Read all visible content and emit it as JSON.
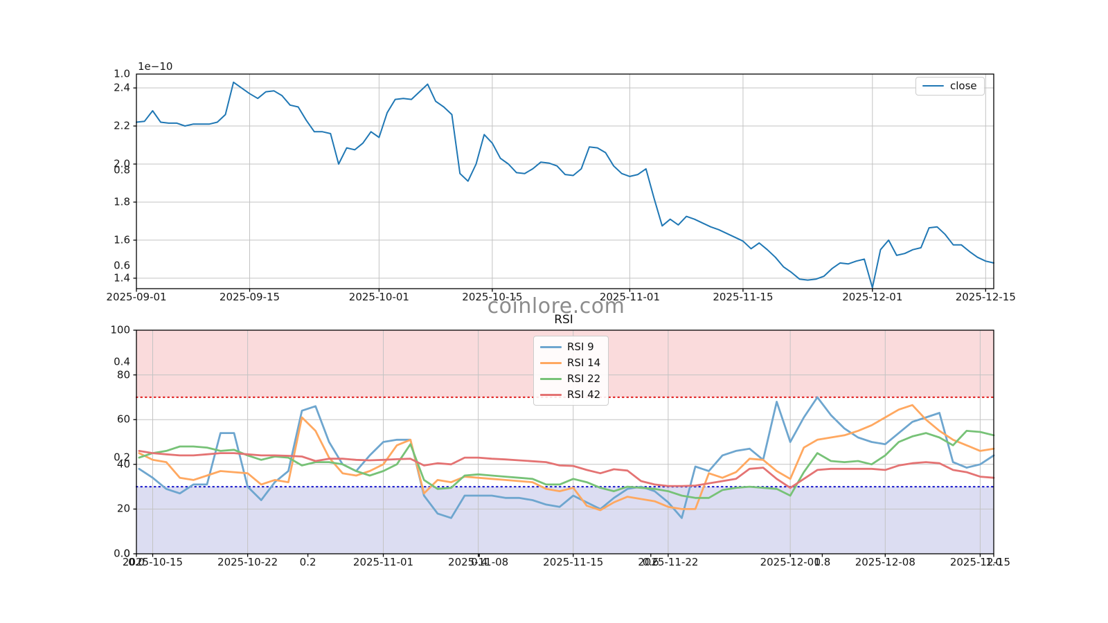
{
  "figure": {
    "watermark": "coinlore.com",
    "background": "#ffffff",
    "grid_color": "#c3c3c3",
    "spine_color": "#000000"
  },
  "hidden_axis": {
    "xticks": [
      "0.0",
      "0.2",
      "0.4",
      "0.6",
      "0.8",
      "1.0"
    ],
    "yticks": [
      "1.0",
      "0.8",
      "0.6",
      "0.4",
      "0.2",
      "0.0"
    ]
  },
  "chart_data": [
    {
      "id": "price",
      "type": "line",
      "title": "",
      "y_offset_label": "1e−10",
      "x_first": "2025-09-01",
      "x_freq": "daily",
      "xlim_days": [
        0,
        106
      ],
      "ylim": [
        1.345,
        2.473
      ],
      "grid": true,
      "legend_position": "upper right",
      "xtick_days": [
        0,
        14,
        30,
        44,
        61,
        75,
        91,
        105
      ],
      "xtick_labels": [
        "2025-09-01",
        "2025-09-15",
        "2025-10-01",
        "2025-10-15",
        "2025-11-01",
        "2025-11-15",
        "2025-12-01",
        "2025-12-15"
      ],
      "ytick_labels": [
        "1.4",
        "1.6",
        "1.8",
        "2.0",
        "2.2",
        "2.4"
      ],
      "y_scale_note": "values are x 1e-10",
      "series": [
        {
          "name": "close",
          "color": "#1f77b4",
          "width": 2,
          "values": [
            2.22,
            2.225,
            2.28,
            2.22,
            2.215,
            2.215,
            2.2,
            2.21,
            2.21,
            2.21,
            2.22,
            2.26,
            2.43,
            2.4,
            2.37,
            2.345,
            2.38,
            2.385,
            2.36,
            2.31,
            2.3,
            2.23,
            2.17,
            2.17,
            2.16,
            2.0,
            2.085,
            2.075,
            2.11,
            2.17,
            2.14,
            2.27,
            2.34,
            2.345,
            2.34,
            2.38,
            2.42,
            2.33,
            2.3,
            2.26,
            1.95,
            1.91,
            2.0,
            2.155,
            2.11,
            2.03,
            2.0,
            1.955,
            1.95,
            1.975,
            2.01,
            2.005,
            1.99,
            1.945,
            1.94,
            1.975,
            2.09,
            2.085,
            2.06,
            1.99,
            1.95,
            1.935,
            1.945,
            1.975,
            1.82,
            1.675,
            1.71,
            1.68,
            1.725,
            1.71,
            1.69,
            1.67,
            1.655,
            1.635,
            1.615,
            1.595,
            1.555,
            1.585,
            1.55,
            1.51,
            1.46,
            1.43,
            1.395,
            1.39,
            1.395,
            1.41,
            1.45,
            1.48,
            1.475,
            1.49,
            1.5,
            1.35,
            1.55,
            1.6,
            1.52,
            1.53,
            1.55,
            1.56,
            1.665,
            1.67,
            1.63,
            1.575,
            1.575,
            1.54,
            1.51,
            1.49,
            1.48
          ]
        }
      ]
    },
    {
      "id": "rsi",
      "type": "line",
      "title": "RSI",
      "x_first": "2025-10-14",
      "x_freq": "daily",
      "ylim": [
        0,
        100
      ],
      "grid": true,
      "legend_position": "upper center",
      "xtick_idx": [
        1,
        8,
        18,
        25,
        32,
        39,
        48,
        55,
        62
      ],
      "xtick_labels": [
        "2025-10-15",
        "2025-10-22",
        "2025-11-01",
        "2025-11-08",
        "2025-11-15",
        "2025-11-22",
        "2025-12-01",
        "2025-12-08",
        "2025-12-15"
      ],
      "ytick_labels": [
        "0",
        "20",
        "40",
        "60",
        "80",
        "100"
      ],
      "bands": [
        {
          "from": 70,
          "to": 100,
          "color": "#fadbdc",
          "meaning": "overbought"
        },
        {
          "from": 0,
          "to": 30,
          "color": "#dcddf2",
          "meaning": "oversold"
        }
      ],
      "hlines": [
        {
          "y": 70,
          "color": "#e22a2a",
          "style": "dotted"
        },
        {
          "y": 30,
          "color": "#2323cd",
          "style": "dotted"
        }
      ],
      "series": [
        {
          "name": "RSI 9",
          "color": "#6ea6cf",
          "width": 2.8,
          "values": [
            38,
            34,
            29,
            27,
            31,
            31,
            54,
            54,
            30,
            24,
            32,
            37,
            64,
            66,
            50,
            40,
            37,
            44,
            50,
            51,
            51,
            26,
            18,
            16,
            26,
            26,
            26,
            25,
            25,
            24,
            22,
            21,
            26,
            23,
            20,
            25,
            29,
            30,
            28,
            23,
            16,
            39,
            37,
            44,
            46,
            47,
            42,
            68,
            50,
            61,
            70,
            62,
            56,
            52,
            50,
            49,
            54,
            59,
            61,
            63,
            41,
            38.5,
            40,
            44
          ]
        },
        {
          "name": "RSI 14",
          "color": "#ffa860",
          "width": 2.8,
          "values": [
            45,
            42,
            41,
            34,
            33,
            35,
            37,
            36.5,
            36,
            31,
            33,
            32,
            61,
            55,
            43,
            36,
            35,
            37,
            40,
            48.5,
            51,
            27,
            33,
            32,
            34.5,
            34,
            33.5,
            33,
            32.5,
            32,
            29,
            28,
            29.5,
            21.5,
            19.5,
            23,
            25.5,
            24.5,
            23.5,
            21,
            20,
            20,
            36,
            34,
            36.5,
            42.5,
            42,
            37,
            33.5,
            47.5,
            51,
            52,
            53,
            55,
            57.5,
            61,
            64.5,
            66.5,
            60,
            55,
            51,
            48.5,
            46,
            47
          ]
        },
        {
          "name": "RSI 22",
          "color": "#77c277",
          "width": 2.8,
          "values": [
            43,
            45,
            46,
            48,
            48,
            47.5,
            46,
            46.5,
            44,
            42,
            43.5,
            43,
            39.5,
            41,
            41,
            40,
            37,
            35,
            37,
            40,
            49,
            33,
            29,
            29.5,
            35,
            35.5,
            35,
            34.5,
            34,
            33.5,
            31,
            31,
            33.5,
            32,
            29.5,
            28,
            30,
            29.5,
            29,
            28,
            26,
            25,
            25,
            28.5,
            29.5,
            30,
            29.5,
            29,
            26,
            36.5,
            45,
            41.5,
            41,
            41.5,
            40,
            44,
            50,
            52.5,
            54,
            52,
            48.5,
            55,
            54.5,
            53
          ]
        },
        {
          "name": "RSI 42",
          "color": "#e47373",
          "width": 2.8,
          "values": [
            46,
            45,
            44.5,
            44,
            44,
            44.5,
            45,
            45,
            44.5,
            44,
            44,
            43.8,
            43.5,
            41.5,
            42.5,
            42.5,
            42,
            41.8,
            42,
            42.3,
            42.5,
            39.5,
            40.5,
            40,
            43,
            43,
            42.5,
            42.2,
            41.8,
            41.4,
            41,
            39.5,
            39.3,
            37.5,
            36,
            37.8,
            37.2,
            32.5,
            31,
            30.3,
            30.3,
            30.5,
            31.5,
            32.5,
            33.5,
            38,
            38.5,
            33.5,
            29.5,
            33.5,
            37.5,
            38,
            38,
            38,
            38,
            37.5,
            39.5,
            40.5,
            41,
            40.5,
            37.5,
            36.5,
            34.5,
            34
          ]
        }
      ]
    }
  ]
}
